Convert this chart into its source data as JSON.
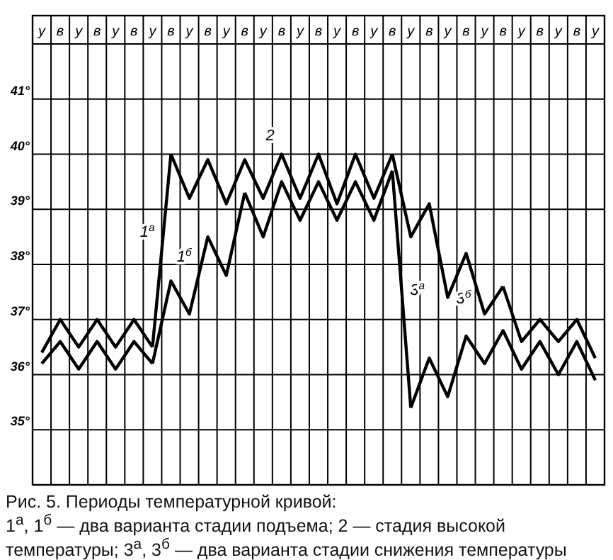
{
  "chart_data": {
    "type": "line",
    "title": "Рис. 5. Периоды температурной кривой:",
    "annotations": [
      "1$^{а}$, 1$^{б}$ — два варианта стадии подъема; 2 — стадия высокой температуры; 3$^{а}$, 3$^{б}$ — два варианта стадии снижения температуры"
    ],
    "categories": [
      "у",
      "в",
      "у",
      "в",
      "у",
      "в",
      "у",
      "в",
      "у",
      "в",
      "у",
      "в",
      "у",
      "в",
      "у",
      "в",
      "у",
      "в",
      "у",
      "в",
      "у",
      "в",
      "у",
      "в",
      "у",
      "в",
      "у",
      "в",
      "у",
      "в",
      "у"
    ],
    "ylim": [
      34,
      42
    ],
    "yticks": [
      {
        "value": 35,
        "label": "35°"
      },
      {
        "value": 36,
        "label": "36°"
      },
      {
        "value": 37,
        "label": "37°"
      },
      {
        "value": 38,
        "label": "38°"
      },
      {
        "value": 39,
        "label": "39°"
      },
      {
        "value": 40,
        "label": "40°"
      },
      {
        "value": 41,
        "label": "41°"
      }
    ],
    "grid": true,
    "marker": "none",
    "line_style": "solid",
    "series": [
      {
        "color": "#000000",
        "values": [
          36.4,
          37.0,
          36.5,
          37.0,
          36.5,
          37.0,
          36.5,
          null,
          null,
          null,
          null,
          null,
          null,
          null,
          null,
          null,
          null,
          null,
          null,
          null,
          null,
          null,
          null,
          null,
          null,
          null,
          null,
          null,
          null,
          null,
          null
        ]
      },
      {
        "color": "#000000",
        "values": [
          36.2,
          36.6,
          36.1,
          36.6,
          36.1,
          36.6,
          36.2,
          null,
          null,
          null,
          null,
          null,
          null,
          null,
          null,
          null,
          null,
          null,
          null,
          null,
          null,
          null,
          null,
          null,
          null,
          null,
          null,
          null,
          null,
          null,
          null
        ]
      },
      {
        "name": "1$^{а}$",
        "color": "#000000",
        "values": [
          null,
          null,
          null,
          null,
          null,
          null,
          36.5,
          40.0,
          null,
          null,
          null,
          null,
          null,
          null,
          null,
          null,
          null,
          null,
          null,
          null,
          null,
          null,
          null,
          null,
          null,
          null,
          null,
          null,
          null,
          null,
          null
        ]
      },
      {
        "name": "1$^{б}$",
        "color": "#000000",
        "values": [
          null,
          null,
          null,
          null,
          null,
          null,
          36.2,
          37.7,
          37.1,
          38.5,
          37.8,
          39.3,
          null,
          null,
          null,
          null,
          null,
          null,
          null,
          null,
          null,
          null,
          null,
          null,
          null,
          null,
          null,
          null,
          null,
          null,
          null
        ]
      },
      {
        "name": "2",
        "color": "#000000",
        "values": [
          null,
          null,
          null,
          null,
          null,
          null,
          null,
          40.0,
          39.2,
          39.9,
          39.1,
          39.9,
          39.2,
          40.0,
          39.2,
          40.0,
          39.1,
          40.0,
          39.2,
          40.0,
          null,
          null,
          null,
          null,
          null,
          null,
          null,
          null,
          null,
          null,
          null
        ]
      },
      {
        "color": "#000000",
        "values": [
          null,
          null,
          null,
          null,
          null,
          null,
          null,
          null,
          null,
          null,
          null,
          39.3,
          38.5,
          39.5,
          38.8,
          39.5,
          38.8,
          39.5,
          38.8,
          39.7,
          null,
          null,
          null,
          null,
          null,
          null,
          null,
          null,
          null,
          null,
          null
        ]
      },
      {
        "name": "3$^{а}$",
        "color": "#000000",
        "values": [
          null,
          null,
          null,
          null,
          null,
          null,
          null,
          null,
          null,
          null,
          null,
          null,
          null,
          null,
          null,
          null,
          null,
          null,
          null,
          39.7,
          35.4,
          null,
          null,
          null,
          null,
          null,
          null,
          null,
          null,
          null,
          null
        ]
      },
      {
        "color": "#000000",
        "values": [
          null,
          null,
          null,
          null,
          null,
          null,
          null,
          null,
          null,
          null,
          null,
          null,
          null,
          null,
          null,
          null,
          null,
          null,
          null,
          null,
          35.4,
          36.3,
          35.6,
          36.7,
          36.2,
          36.8,
          36.1,
          36.6,
          36.0,
          36.6,
          35.9
        ]
      },
      {
        "name": "3$^{б}$",
        "color": "#000000",
        "values": [
          null,
          null,
          null,
          null,
          null,
          null,
          null,
          null,
          null,
          null,
          null,
          null,
          null,
          null,
          null,
          null,
          null,
          null,
          null,
          40.0,
          38.5,
          39.1,
          37.4,
          38.2,
          37.1,
          37.6,
          null,
          null,
          null,
          null,
          null
        ]
      },
      {
        "color": "#000000",
        "values": [
          null,
          null,
          null,
          null,
          null,
          null,
          null,
          null,
          null,
          null,
          null,
          null,
          null,
          null,
          null,
          null,
          null,
          null,
          null,
          null,
          null,
          null,
          null,
          null,
          null,
          37.6,
          36.6,
          37.0,
          36.6,
          37.0,
          36.3
        ]
      }
    ]
  }
}
